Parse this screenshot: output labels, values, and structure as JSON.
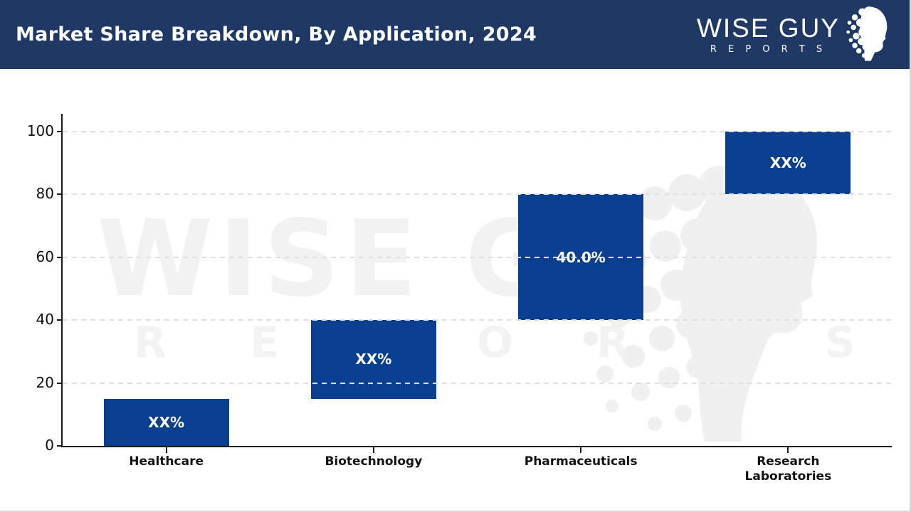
{
  "header": {
    "bg_color": "#1f3864",
    "logo": {
      "name": "WISE GUY",
      "sub": "R E P O R T S",
      "icon": "wiseguy-head-icon"
    }
  },
  "watermark": {
    "big": "WISE GU",
    "sub": "R E P O R T S",
    "icon": "wiseguy-head-watermark-icon",
    "color": "#f2f2f2"
  },
  "chart_data": {
    "type": "bar",
    "subtype": "waterfall",
    "title": "Market Share Breakdown, By Application, 2024",
    "categories": [
      "Healthcare",
      "Biotechnology",
      "Pharmaceuticals",
      "Research Laboratories"
    ],
    "segments": [
      {
        "category": "Healthcare",
        "start": 0,
        "end": 15,
        "label": "XX%"
      },
      {
        "category": "Biotechnology",
        "start": 15,
        "end": 40,
        "label": "XX%"
      },
      {
        "category": "Pharmaceuticals",
        "start": 40,
        "end": 80,
        "label": "40.0%"
      },
      {
        "category": "Research Laboratories",
        "start": 80,
        "end": 100,
        "label": "XX%"
      }
    ],
    "xlabel": "",
    "ylabel": "",
    "ylim": [
      0,
      100
    ],
    "yticks": [
      0,
      20,
      40,
      60,
      80,
      100
    ],
    "grid": {
      "horizontal": true,
      "style": "dashed",
      "color": "#e0e0e0",
      "above_bars": true
    },
    "legend": null,
    "bar_color": "#0a3f8f",
    "bar_label_color": "#ffffff",
    "axis_color": "#1a1a1a",
    "tick_label_color": "#111111"
  }
}
